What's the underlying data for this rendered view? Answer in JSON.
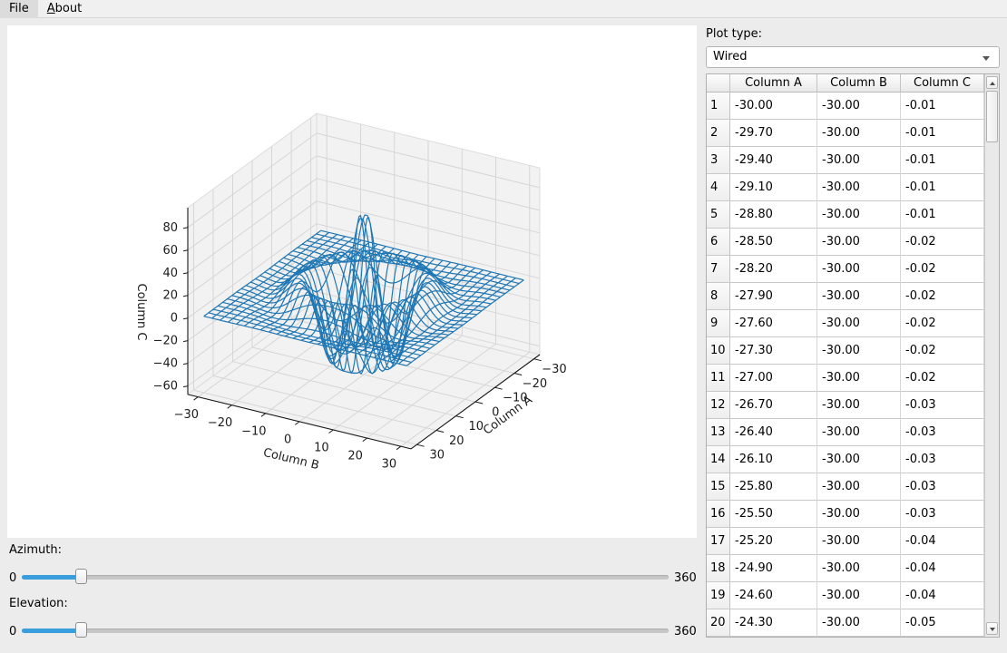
{
  "menu": {
    "items": [
      {
        "label": "File"
      },
      {
        "label": "About",
        "accel": "A",
        "rest": "bout"
      }
    ]
  },
  "plot_type": {
    "label": "Plot type:",
    "value": "Wired"
  },
  "table": {
    "headers": [
      "Column A",
      "Column B",
      "Column C"
    ],
    "rows": [
      [
        "1",
        "-30.00",
        "-30.00",
        "-0.01"
      ],
      [
        "2",
        "-29.70",
        "-30.00",
        "-0.01"
      ],
      [
        "3",
        "-29.40",
        "-30.00",
        "-0.01"
      ],
      [
        "4",
        "-29.10",
        "-30.00",
        "-0.01"
      ],
      [
        "5",
        "-28.80",
        "-30.00",
        "-0.01"
      ],
      [
        "6",
        "-28.50",
        "-30.00",
        "-0.02"
      ],
      [
        "7",
        "-28.20",
        "-30.00",
        "-0.02"
      ],
      [
        "8",
        "-27.90",
        "-30.00",
        "-0.02"
      ],
      [
        "9",
        "-27.60",
        "-30.00",
        "-0.02"
      ],
      [
        "10",
        "-27.30",
        "-30.00",
        "-0.02"
      ],
      [
        "11",
        "-27.00",
        "-30.00",
        "-0.02"
      ],
      [
        "12",
        "-26.70",
        "-30.00",
        "-0.03"
      ],
      [
        "13",
        "-26.40",
        "-30.00",
        "-0.03"
      ],
      [
        "14",
        "-26.10",
        "-30.00",
        "-0.03"
      ],
      [
        "15",
        "-25.80",
        "-30.00",
        "-0.03"
      ],
      [
        "16",
        "-25.50",
        "-30.00",
        "-0.03"
      ],
      [
        "17",
        "-25.20",
        "-30.00",
        "-0.04"
      ],
      [
        "18",
        "-24.90",
        "-30.00",
        "-0.04"
      ],
      [
        "19",
        "-24.60",
        "-30.00",
        "-0.04"
      ],
      [
        "20",
        "-24.30",
        "-30.00",
        "-0.05"
      ]
    ]
  },
  "sliders": {
    "azimuth": {
      "label": "Azimuth:",
      "min_label": "0",
      "max_label": "360",
      "value_pct": 9.1
    },
    "elevation": {
      "label": "Elevation:",
      "min_label": "0",
      "max_label": "360",
      "value_pct": 9.1
    },
    "accent": "#3a9ddc"
  },
  "chart_data": {
    "type": "wireframe3d",
    "xlabel": "Column A",
    "ylabel": "Column B",
    "zlabel": "Column C",
    "x_ticks": [
      -30,
      -20,
      -10,
      0,
      10,
      20,
      30
    ],
    "y_ticks": [
      -30,
      -20,
      -10,
      0,
      10,
      20,
      30
    ],
    "z_ticks": [
      80,
      60,
      40,
      20,
      0,
      -20,
      -40,
      -60
    ],
    "xlim": [
      -33,
      33
    ],
    "ylim": [
      -33,
      33
    ],
    "zlim": [
      -67.5,
      97.5
    ],
    "view": {
      "azim": 30,
      "elev": 25
    },
    "box_aspect": [
      4,
      4,
      3.2
    ],
    "surface": {
      "desc": "z = amp*cos(k*r)*exp(-(r/s)^2), r=sqrt(A^2+B^2)",
      "amp": 80,
      "k": 0.35,
      "s": 14,
      "grid_range": [
        -30,
        30
      ],
      "grid_lines": 26
    },
    "colors": {
      "line": "#1f77b4",
      "pane": "#f2f2f2",
      "grid": "#d6d6d6",
      "axis": "#1a1a1a",
      "text": "#1c1c1c"
    }
  }
}
